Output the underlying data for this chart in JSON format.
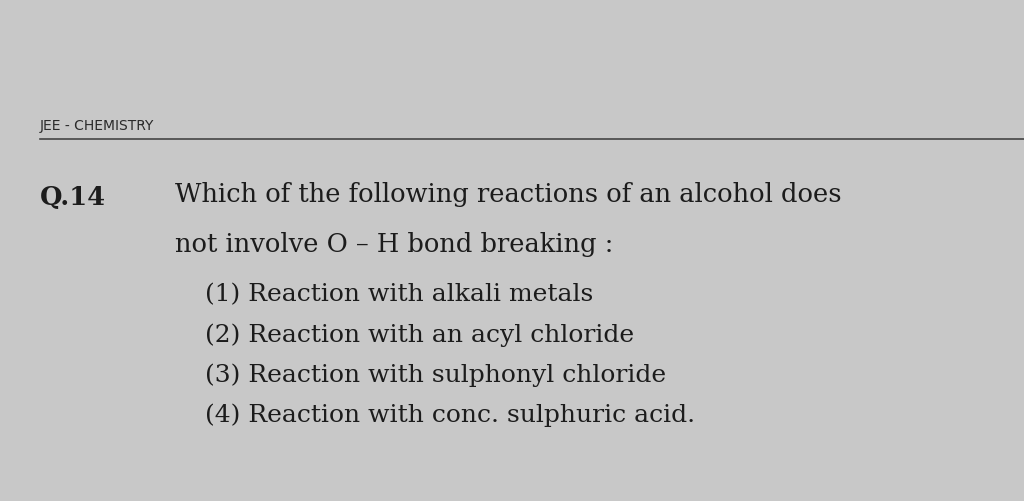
{
  "background_color": "#c8c8c8",
  "header_text": "JEE - CHEMISTRY",
  "header_fontsize": 10,
  "header_color": "#2a2a2a",
  "question_number": "Q.14",
  "question_line1": "Which of the following reactions of an alcohol does",
  "question_line2": "not involve O – H bond breaking :",
  "question_fontsize": 18.5,
  "options": [
    "(1) Reaction with alkali metals",
    "(2) Reaction with an acyl chloride",
    "(3) Reaction with sulphonyl chloride",
    "(4) Reaction with conc. sulphuric acid."
  ],
  "options_fontsize": 18,
  "text_color": "#1c1c1c",
  "fig_width": 10.24,
  "fig_height": 5.02,
  "dpi": 100
}
